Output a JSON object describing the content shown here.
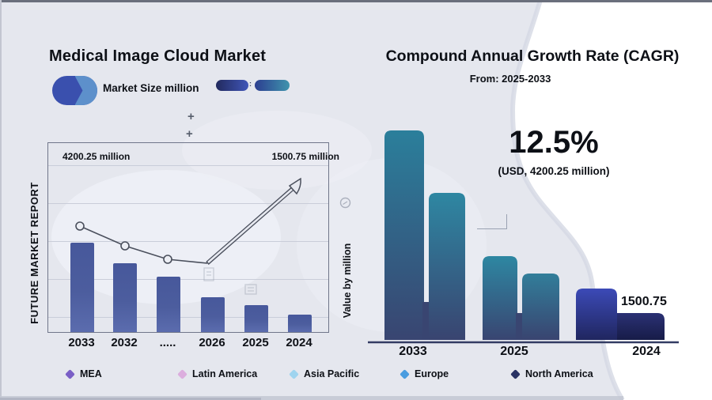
{
  "header": {
    "title": "Medical Image Cloud Market",
    "series_label": "Market Size million",
    "ratio_separator": ":"
  },
  "decor": {
    "plus1": "+",
    "plus2": "+"
  },
  "left_chart": {
    "side_label": "FUTURE MARKET REPORT",
    "top_left_value": "4200.25 million",
    "top_right_value": "1500.75 million",
    "x_labels": [
      "2033",
      "2032",
      ".....",
      "2026",
      "2025",
      "2024"
    ]
  },
  "right_panel": {
    "title": "Compound Annual Growth Rate (CAGR)",
    "subtitle": "From: 2025-2033",
    "cagr": "12.5%",
    "cagr_note": "(USD, 4200.25 million)"
  },
  "right_chart": {
    "axis_label": "Value by million",
    "x_labels": [
      "2033",
      "2025",
      "2024"
    ],
    "value_annotation": "1500.75"
  },
  "legend": {
    "items": [
      {
        "label": "MEA",
        "color": "#7a5fc6"
      },
      {
        "label": "Latin America",
        "color": "#dcaede"
      },
      {
        "label": "Asia Pacific",
        "color": "#9fd4ef"
      },
      {
        "label": "Europe",
        "color": "#4a9de0"
      },
      {
        "label": "North America",
        "color": "#2a3365"
      }
    ]
  },
  "chart_data": [
    {
      "type": "bar",
      "title": "Medical Image Cloud Market",
      "subtitle_legend": "Market Size million",
      "categories": [
        "2033",
        "2032",
        ".....",
        "2026",
        "2025",
        "2024"
      ],
      "values": [
        4200.25,
        3230,
        2600,
        1640,
        1265,
        820
      ],
      "unit": "million",
      "xlabel": "",
      "ylabel": "Market Size million",
      "ymax": 4200.25,
      "grid": true,
      "axis_reversed": true,
      "annotations": [
        {
          "text": "4200.25 million",
          "position": "top-left"
        },
        {
          "text": "1500.75 million",
          "position": "top-right"
        }
      ],
      "trend_line": {
        "style": "declining markers over 2033-2032-..... then double-line arrow rising to top right",
        "marker_categories": [
          "2033",
          "2032",
          "....."
        ]
      }
    },
    {
      "type": "bar",
      "title": "Compound Annual Growth Rate (CAGR)",
      "subtitle": "From: 2025-2033",
      "cagr_percent": 12.5,
      "categories": [
        "2033",
        "2025",
        "2024"
      ],
      "series": [
        {
          "name": "bar-a",
          "values": [
            4200.25,
            1680,
            1030
          ]
        },
        {
          "name": "bar-b",
          "values": [
            2950,
            1330,
            540
          ]
        }
      ],
      "unit": "million",
      "ylabel": "Value by million",
      "ymax": 4200.25,
      "grid": false,
      "annotations": [
        {
          "text": "1500.75",
          "position": "right-of-2024-group"
        },
        {
          "text": "12.5%",
          "position": "upper-center"
        },
        {
          "text": "(USD, 4200.25 million)",
          "position": "below-cagr"
        }
      ]
    }
  ]
}
